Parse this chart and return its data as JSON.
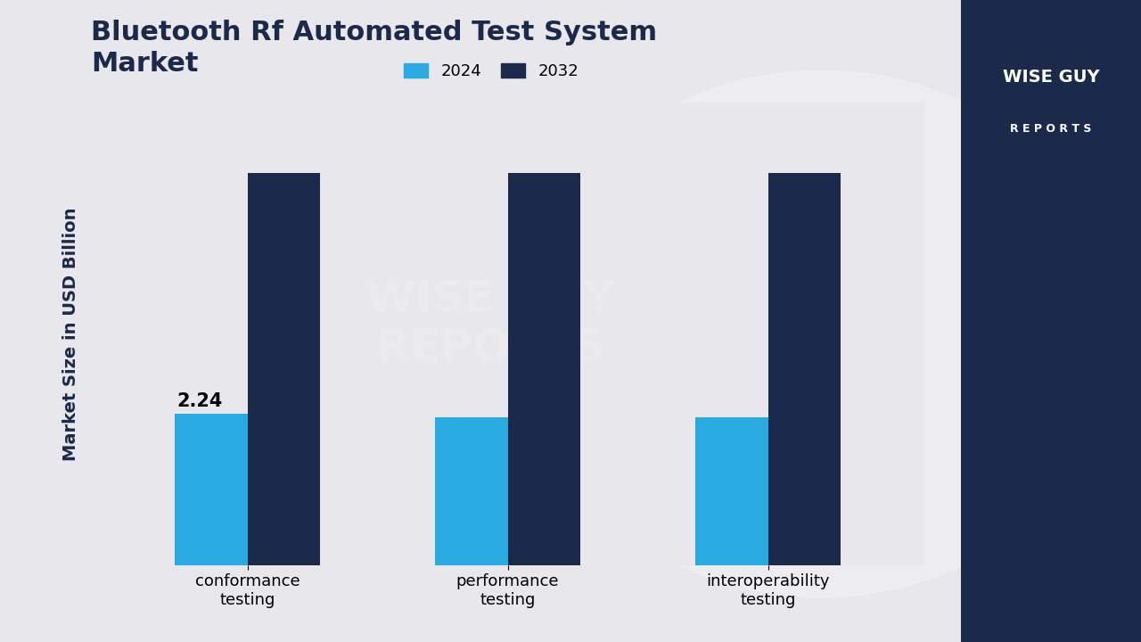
{
  "title": "Bluetooth Rf Automated Test System\nMarket",
  "ylabel": "Market Size in USD Billion",
  "categories": [
    "conformance\ntesting",
    "performance\ntesting",
    "interoperability\ntesting"
  ],
  "values_2024": [
    2.24,
    2.18,
    2.18
  ],
  "values_2032": [
    5.8,
    5.8,
    5.8
  ],
  "color_2024": "#29ABE2",
  "color_2032": "#1B2A4A",
  "annotation_value": "2.24",
  "background_color": "#E8E8EC",
  "right_panel_color": "#1B2A4A",
  "title_color": "#1B2A4A",
  "ylabel_color": "#1B2A4A",
  "legend_labels": [
    "2024",
    "2032"
  ],
  "bar_width": 0.28,
  "title_fontsize": 22,
  "ylabel_fontsize": 14,
  "tick_fontsize": 13,
  "legend_fontsize": 13,
  "annotation_fontsize": 15
}
